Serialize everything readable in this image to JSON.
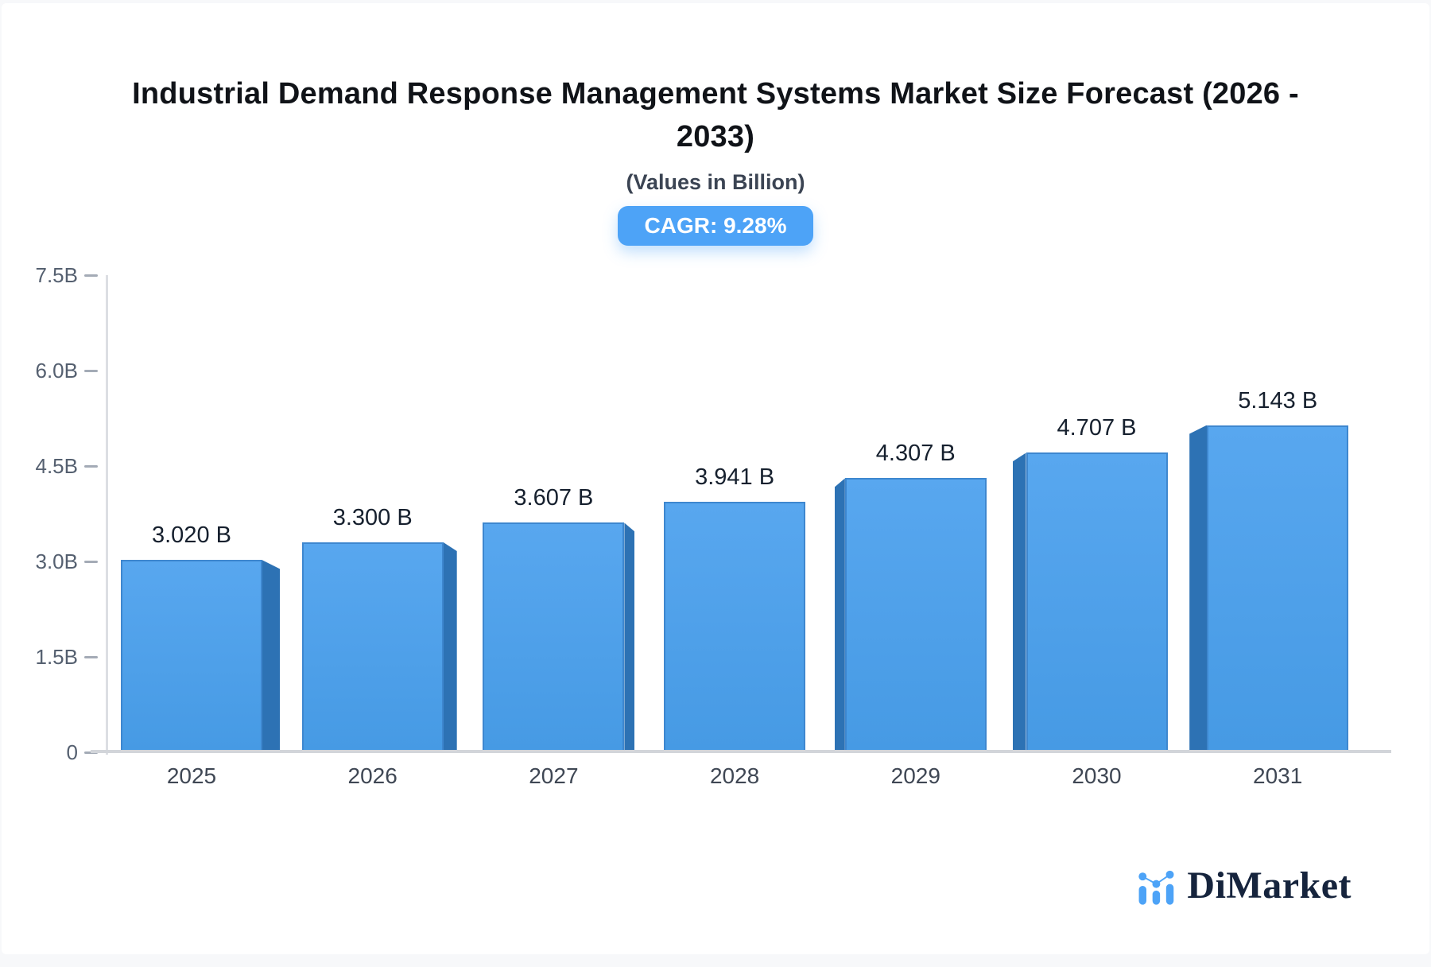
{
  "header": {
    "title": "Industrial Demand Response Management Systems Market Size Forecast (2026 - 2033)",
    "subtitle": "(Values in Billion)",
    "cagr_badge": "CAGR: 9.28%",
    "badge_color": "#4da3f7"
  },
  "chart_data": {
    "type": "bar",
    "title": "Industrial Demand Response Management Systems Market Size Forecast (2026 - 2033)",
    "subtitle": "(Values in Billion)",
    "categories": [
      "2025",
      "2026",
      "2027",
      "2028",
      "2029",
      "2030",
      "2031"
    ],
    "values": [
      3.02,
      3.3,
      3.607,
      3.941,
      4.307,
      4.707,
      5.143
    ],
    "value_labels": [
      "3.020 B",
      "3.300 B",
      "3.607 B",
      "3.941 B",
      "4.307 B",
      "4.707 B",
      "5.143 B"
    ],
    "y_ticks": [
      {
        "value": 0.0,
        "label": "0"
      },
      {
        "value": 1.5,
        "label": "1.5B"
      },
      {
        "value": 3.0,
        "label": "3.0B"
      },
      {
        "value": 4.5,
        "label": "4.5B"
      },
      {
        "value": 6.0,
        "label": "6.0B"
      },
      {
        "value": 7.5,
        "label": "7.5B"
      }
    ],
    "ylim": [
      0,
      7.5
    ],
    "xlabel": "",
    "ylabel": "",
    "grid": false,
    "legend": false,
    "colors": {
      "bar_face_top": "#58a7ef",
      "bar_face_bottom": "#469ae4",
      "bar_border": "#3e87cf",
      "bar_side": "#2d72b4",
      "y_axis_line": "#dcdee3",
      "x_axis_line": "#d2d5da",
      "tick_dash": "#a4abb6",
      "tick_text": "#556070"
    }
  },
  "footer": {
    "brand": "DiMarket",
    "brand_color": "#16243d",
    "logo_color": "#4da3f7"
  }
}
